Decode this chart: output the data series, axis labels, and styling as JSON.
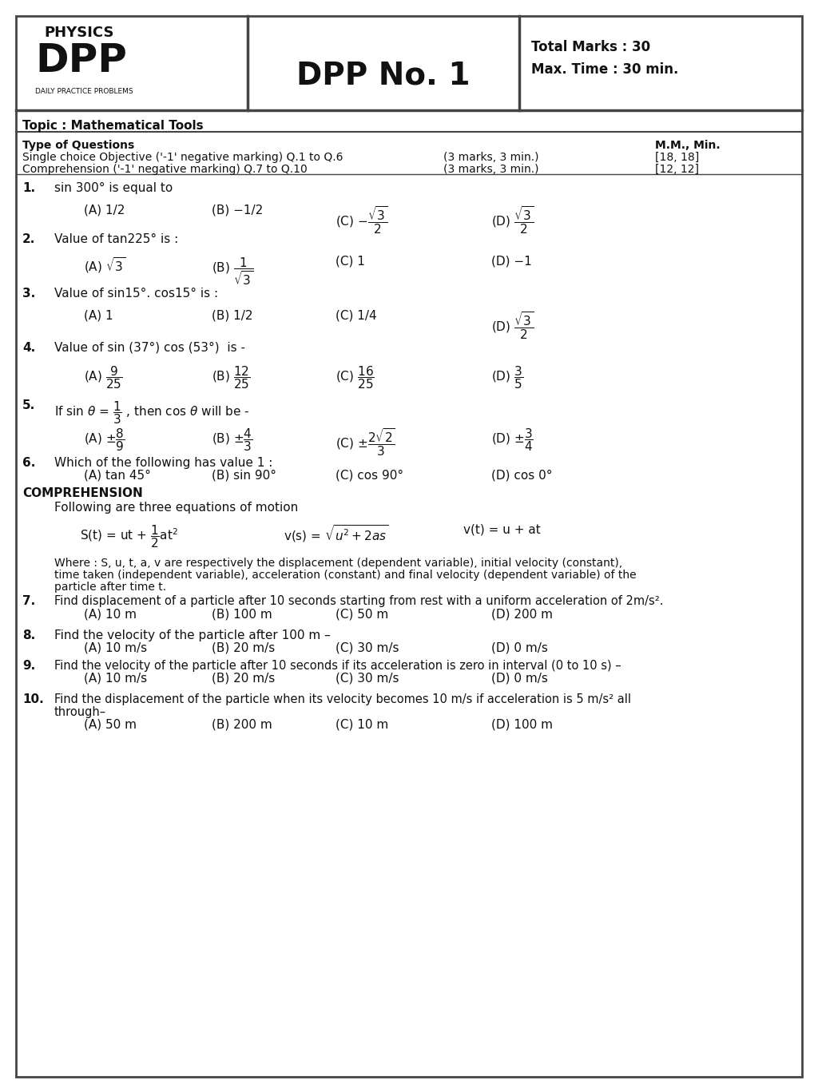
{
  "bg_color": "#ffffff",
  "border_color": "#444444",
  "text_color": "#111111",
  "header": {
    "physics_text": "PHYSICS",
    "dpp_text": "DPP",
    "daily_text": "DAILY PRACTICE PROBLEMS",
    "center_text": "DPP No. 1",
    "right_line1": "Total Marks : 30",
    "right_line2": "Max. Time : 30 min."
  },
  "topic": "Topic : Mathematical Tools",
  "qt_line1": "Type of Questions",
  "qt_line2": "Single choice Objective ('-1' negative marking) Q.1 to Q.6",
  "qt_line3": "Comprehension ('-1' negative marking) Q.7 to Q.10",
  "qt_marks1": "(3 marks, 3 min.)",
  "qt_marks2": "(3 marks, 3 min.)",
  "qt_mm1": "M.M., Min.",
  "qt_mm2": "[18, 18]",
  "qt_mm3": "[12, 12]"
}
